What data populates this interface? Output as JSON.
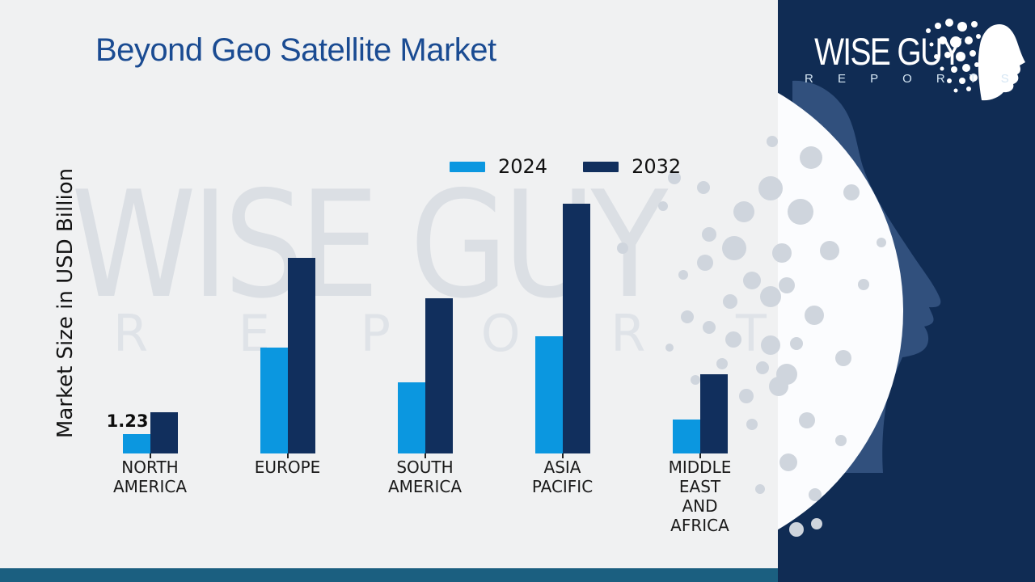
{
  "page": {
    "title": "Beyond Geo Satellite Market",
    "title_color": "#1a4b92",
    "background_color": "#f0f1f2",
    "bottom_bar_color": "#1b5f80"
  },
  "branding": {
    "logo_line1": "WISE GUY",
    "logo_line2": "R E P O R T S",
    "panel_color": "#102c54",
    "face_silhouette_color": "#31507d",
    "watermark_line1": "WISE GUY",
    "watermark_line2": "R E P O R T S"
  },
  "chart_data": {
    "type": "bar",
    "title": "Beyond Geo Satellite Market",
    "xlabel": "",
    "ylabel": "Market Size in USD Billion",
    "unit": "USD Billion",
    "grid": false,
    "legend_position": "top-right",
    "ylim": [
      0,
      16.5
    ],
    "categories": [
      "NORTH AMERICA",
      "EUROPE",
      "SOUTH AMERICA",
      "ASIA PACIFIC",
      "MIDDLE EAST AND AFRICA"
    ],
    "category_lines": [
      [
        "NORTH",
        "AMERICA"
      ],
      [
        "EUROPE"
      ],
      [
        "SOUTH",
        "AMERICA"
      ],
      [
        "ASIA",
        "PACIFIC"
      ],
      [
        "MIDDLE",
        "EAST",
        "AND",
        "AFRICA"
      ]
    ],
    "series": [
      {
        "name": "2024",
        "color": "#0b97e0",
        "values": [
          1.23,
          6.7,
          4.5,
          7.45,
          2.15
        ]
      },
      {
        "name": "2032",
        "color": "#112f5d",
        "values": [
          2.6,
          12.4,
          9.85,
          15.85,
          5.0
        ]
      }
    ],
    "data_labels": [
      {
        "series": "2024",
        "category": "NORTH AMERICA",
        "text": "1.23"
      }
    ]
  }
}
